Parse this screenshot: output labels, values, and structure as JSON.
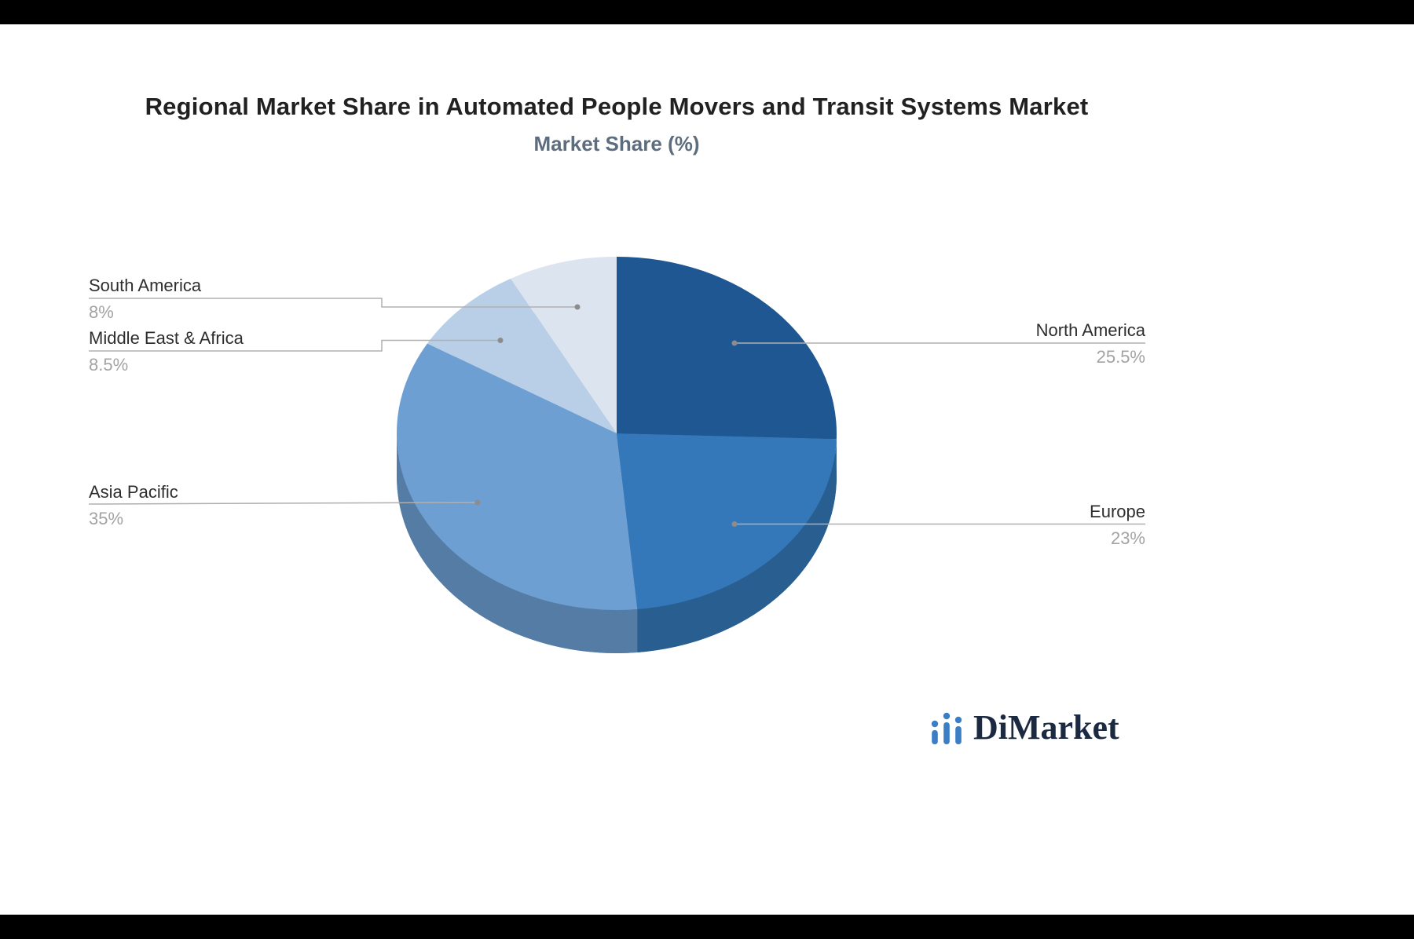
{
  "header": {
    "title": "Regional Market Share in Automated People Movers and Transit Systems Market",
    "subtitle": "Market Share (%)"
  },
  "brand": {
    "name": "DiMarket",
    "icon": "bar-chart-icon",
    "text_color": "#1b2a41",
    "icon_color": "#3b7ec6"
  },
  "chart_data": {
    "type": "pie",
    "style": "3d",
    "title": "Regional Market Share in Automated People Movers and Transit Systems Market",
    "subtitle": "Market Share (%)",
    "unit": "%",
    "direction": "clockwise",
    "start_angle_deg": 0,
    "legend_position": "none",
    "slices": [
      {
        "label": "North America",
        "value": 25.5,
        "display": "25.5%",
        "color": "#1e5791",
        "label_side": "right"
      },
      {
        "label": "Europe",
        "value": 23,
        "display": "23%",
        "color": "#3478b9",
        "label_side": "right"
      },
      {
        "label": "Asia Pacific",
        "value": 35,
        "display": "35%",
        "color": "#6d9fd3",
        "label_side": "left"
      },
      {
        "label": "Middle East & Africa",
        "value": 8.5,
        "display": "8.5%",
        "color": "#b9cfe8",
        "label_side": "left"
      },
      {
        "label": "South America",
        "value": 8,
        "display": "8%",
        "color": "#dce4ef",
        "label_side": "left"
      }
    ]
  }
}
